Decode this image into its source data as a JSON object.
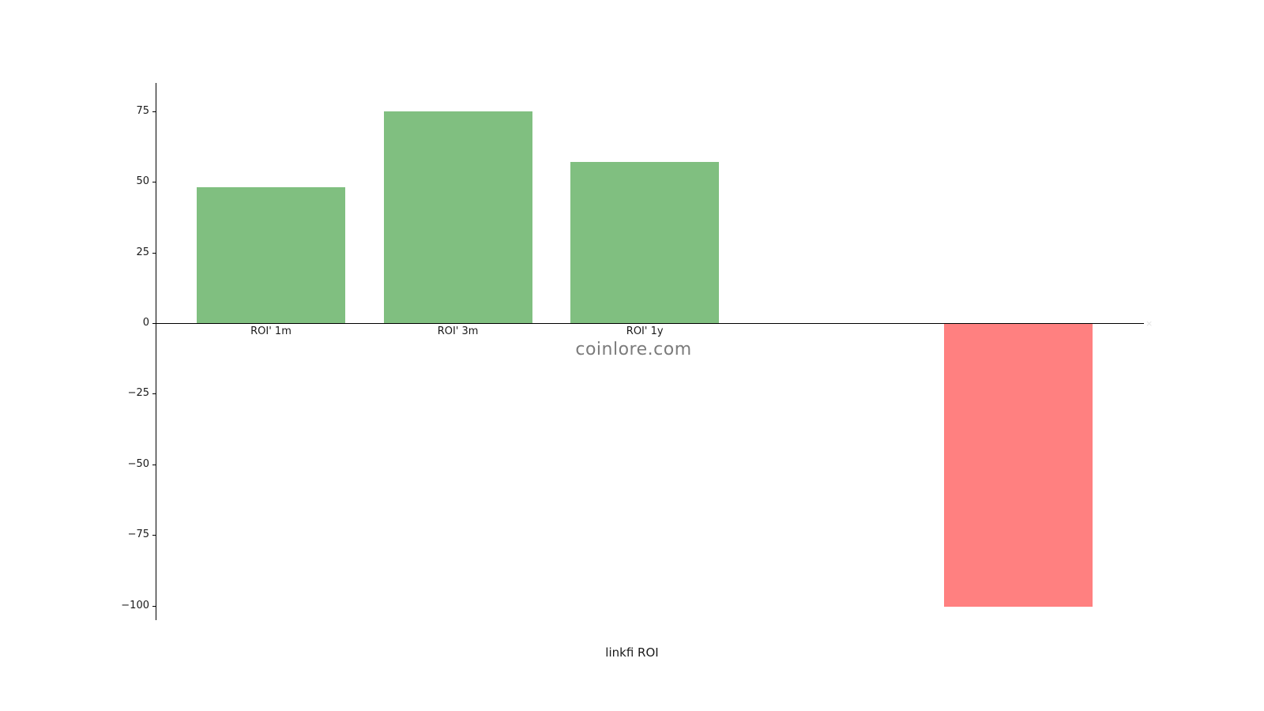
{
  "watermark": {
    "text": "coinlore.com",
    "color": "#7b7b7b"
  },
  "footer": {
    "title": "linkfi ROI"
  },
  "axis": {
    "color": "#000000",
    "tick_label_color": "#1a1a1a"
  },
  "chart_data": {
    "type": "bar",
    "title": "linkfi ROI",
    "categories": [
      "ROI' 1m",
      "ROI' 3m",
      "ROI' 1y",
      "",
      ""
    ],
    "values": [
      48,
      75,
      57,
      null,
      -100
    ],
    "bar_colors": [
      "#80bf80",
      "#80bf80",
      "#80bf80",
      null,
      "#ff8080"
    ],
    "positive_color": "#80bf80",
    "negative_color": "#ff8080",
    "xlabel": "",
    "ylabel": "",
    "yticks": [
      75,
      50,
      25,
      0,
      -25,
      -50,
      -75,
      -100
    ],
    "ylim": [
      -106,
      83
    ],
    "grid": false,
    "legend": null,
    "watermark": "coinlore.com"
  }
}
